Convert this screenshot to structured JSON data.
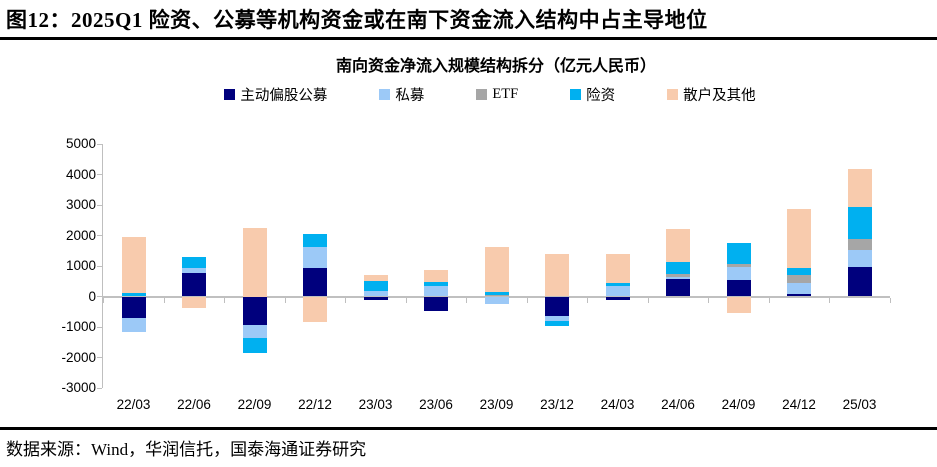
{
  "header": {
    "title": "图12：2025Q1 险资、公募等机构资金或在南下资金流入结构中占主导地位"
  },
  "footer": {
    "source": "数据来源：Wind，华润信托，国泰海通证券研究"
  },
  "chart_data": {
    "type": "bar",
    "stacked": true,
    "title": "南向资金净流入规模结构拆分（亿元人民币）",
    "categories": [
      "22/03",
      "22/06",
      "22/09",
      "22/12",
      "23/03",
      "23/06",
      "23/09",
      "23/12",
      "24/03",
      "24/06",
      "24/09",
      "24/12",
      "25/03"
    ],
    "series": [
      {
        "name": "主动偏股公募",
        "color": "#00007D",
        "values": [
          -700,
          770,
          -950,
          930,
          -100,
          -470,
          0,
          -650,
          -120,
          580,
          530,
          90,
          970
        ]
      },
      {
        "name": "私募",
        "color": "#9CC9F7",
        "values": [
          -450,
          160,
          -400,
          690,
          170,
          360,
          -250,
          -150,
          340,
          60,
          440,
          360,
          550
        ]
      },
      {
        "name": "ETF",
        "color": "#A6A6A6",
        "values": [
          0,
          0,
          0,
          0,
          0,
          0,
          60,
          0,
          0,
          90,
          110,
          240,
          380
        ]
      },
      {
        "name": "险资",
        "color": "#00B0F0",
        "values": [
          100,
          360,
          -500,
          430,
          350,
          130,
          100,
          -180,
          110,
          400,
          680,
          240,
          1040
        ]
      },
      {
        "name": "散户及其他",
        "color": "#F8CBAD",
        "values": [
          1850,
          -390,
          2250,
          -840,
          200,
          380,
          1470,
          1400,
          930,
          1070,
          -550,
          1930,
          1230
        ]
      }
    ],
    "ylim": [
      -3000,
      5000
    ],
    "yticks": [
      5000,
      4000,
      3000,
      2000,
      1000,
      0,
      -1000,
      -2000,
      -3000
    ],
    "grid": "none",
    "legend_position": "top",
    "axis_color": "#BFBFBF"
  }
}
